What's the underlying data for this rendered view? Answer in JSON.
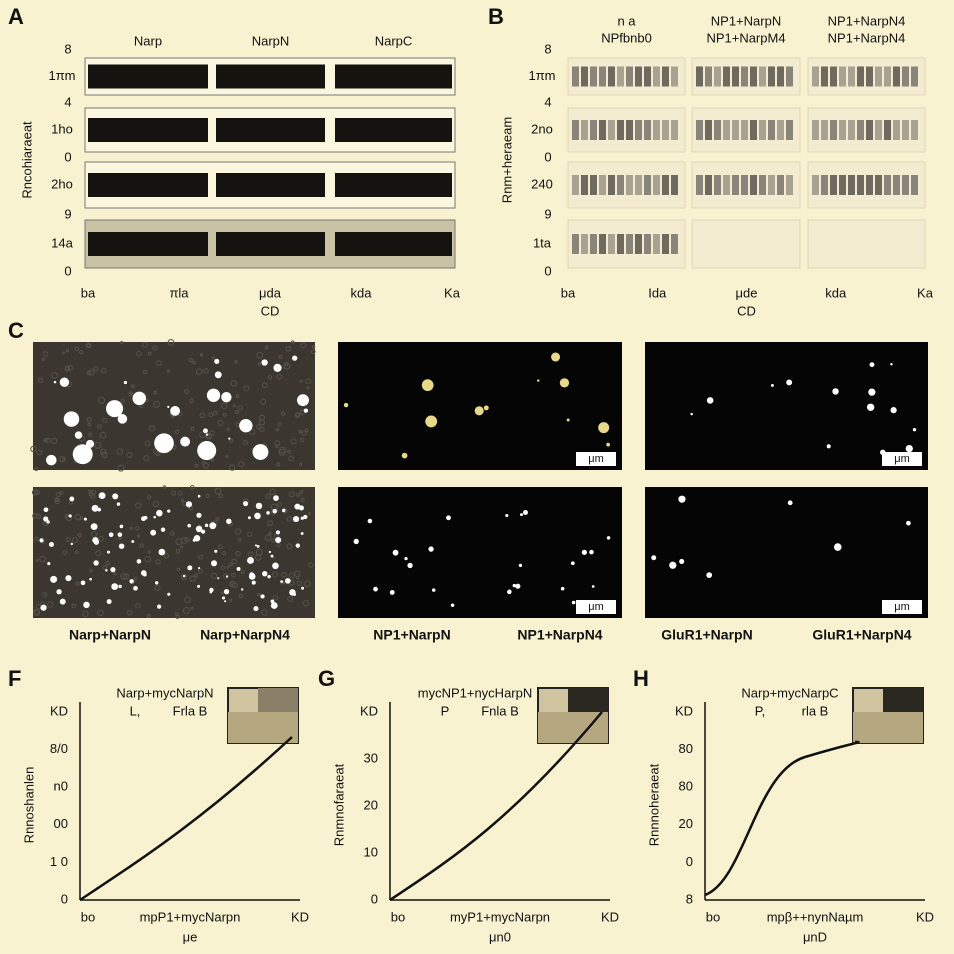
{
  "A": {
    "label": "A",
    "columns": [
      "Narp",
      "NarpN",
      "NarpC"
    ],
    "ticks": [
      "8",
      "4",
      "0",
      "9",
      "0"
    ],
    "rows": [
      "1πm",
      "1ho",
      "2ho",
      "14a"
    ],
    "ytitle": "Rncohiaraeat",
    "xticks": [
      "ba",
      "πla",
      "μda",
      "kda",
      "Ka"
    ],
    "xtitle": "CD"
  },
  "B": {
    "label": "B",
    "columns": [
      [
        "n a",
        "NPfbnb0"
      ],
      [
        "NP1+NarpN",
        "NP1+NarpM4"
      ],
      [
        "NP1+NarpN4",
        "NP1+NarpN4"
      ]
    ],
    "ticks": [
      "8",
      "4",
      "0",
      "9",
      "0"
    ],
    "rows": [
      "1πm",
      "2no",
      "240",
      "1ta"
    ],
    "ytitle": "Rnm+heraeam",
    "xticks": [
      "ba",
      "Ida",
      "μde",
      "kda",
      "Ka"
    ],
    "xtitle": "CD"
  },
  "C": {
    "label": "C",
    "scalebars": [
      "μm",
      "μm",
      "μm",
      "μm"
    ],
    "labels": [
      "Narp+NarpN",
      "Narp+NarpN4",
      "NP1+NarpN",
      "NP1+NarpN4",
      "GluR1+NarpN",
      "GluR1+NarpN4"
    ]
  },
  "plots": [
    {
      "label": "F",
      "legend": [
        "Narp+mycNarpN",
        "L,",
        "Frla B"
      ],
      "yticks": [
        "KD",
        "8/0",
        "n0",
        "00",
        "1 0",
        "0"
      ],
      "ytitle": "Rnnoshanlen",
      "xticks": [
        "bo",
        "mpP1+mycNarpn",
        "KD"
      ],
      "xtitle": "μe"
    },
    {
      "label": "G",
      "legend": [
        "mycNP1+nycHarpN",
        "P",
        "Fnla B"
      ],
      "yticks": [
        "KD",
        "30",
        "20",
        "10",
        "0"
      ],
      "ytitle": "Rnmnofaraeat",
      "xticks": [
        "bo",
        "myP1+mycNarpn",
        "KD"
      ],
      "xtitle": "μn0"
    },
    {
      "label": "H",
      "legend": [
        "Narp+mycNarpC",
        "P,",
        "rla B"
      ],
      "yticks": [
        "KD",
        "80",
        "80",
        "20",
        "0",
        "8"
      ],
      "ytitle": "Rnnnoheraeat",
      "xticks": [
        "bo",
        "mpβ++nynNaµm",
        "KD"
      ],
      "xtitle": "μnD"
    }
  ]
}
